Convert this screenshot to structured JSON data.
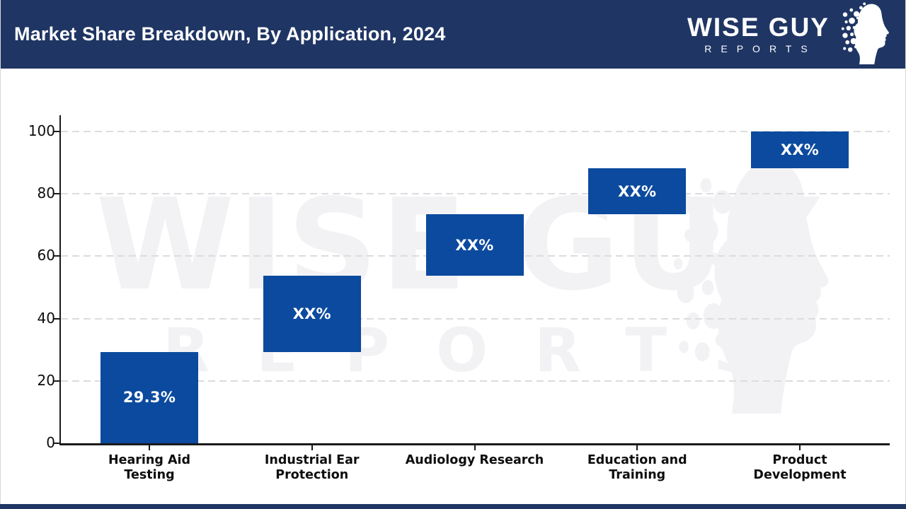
{
  "header": {
    "title": "Market Share Breakdown, By Application, 2024",
    "brand": {
      "line1": "WISE GUY",
      "line2": "REPORTS"
    }
  },
  "watermark": {
    "line1": "WISE GUY",
    "line2": "REPORTS"
  },
  "colors": {
    "header_bg": "#1f3564",
    "bar_blue": "#0b4a9e",
    "grid_gray": "#dcdcdc",
    "watermark_gray": "#f2f2f5",
    "text_black": "#0d0d0d",
    "label_white": "#ffffff"
  },
  "chart_data": {
    "type": "bar",
    "subtype": "waterfall-floating-segments",
    "title": "Market Share Breakdown, By Application, 2024",
    "xlabel": "",
    "ylabel": "",
    "ylim": [
      0,
      105
    ],
    "yticks": [
      0,
      20,
      40,
      60,
      80,
      100
    ],
    "grid": "dashed-horizontal",
    "legend": "none",
    "categories": [
      {
        "line1": "Hearing Aid",
        "line2": "Testing"
      },
      {
        "line1": "Industrial Ear",
        "line2": "Protection"
      },
      {
        "line1": "Audiology Research",
        "line2": ""
      },
      {
        "line1": "Education and",
        "line2": "Training"
      },
      {
        "line1": "Product",
        "line2": "Development"
      }
    ],
    "segments": [
      {
        "label": "29.3%",
        "start": 0,
        "end": 29.3
      },
      {
        "label": "XX%",
        "start": 29.3,
        "end": 53.7
      },
      {
        "label": "XX%",
        "start": 53.7,
        "end": 73.4
      },
      {
        "label": "XX%",
        "start": 73.4,
        "end": 88.1
      },
      {
        "label": "XX%",
        "start": 88.1,
        "end": 100
      }
    ]
  }
}
